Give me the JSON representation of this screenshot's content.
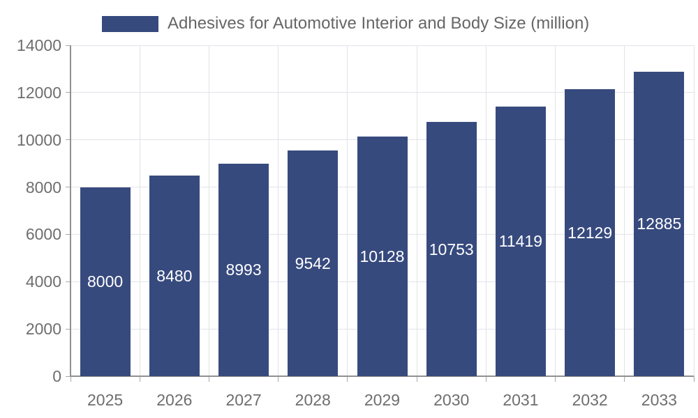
{
  "chart_data": {
    "type": "bar",
    "title": "Adhesives for Automotive Interior and Body Size (million)",
    "legend_label": "Adhesives for Automotive Interior and Body Size (million)",
    "legend_position": "top",
    "categories": [
      "2025",
      "2026",
      "2027",
      "2028",
      "2029",
      "2030",
      "2031",
      "2032",
      "2033"
    ],
    "series": [
      {
        "name": "Adhesives for Automotive Interior and Body Size (million)",
        "values": [
          8000,
          8480,
          8993,
          9542,
          10128,
          10753,
          11419,
          12129,
          12885
        ]
      }
    ],
    "value_labels": "inside",
    "xlabel": "",
    "ylabel": "",
    "ylim": [
      0,
      14000
    ],
    "yticks": [
      0,
      2000,
      4000,
      6000,
      8000,
      10000,
      12000,
      14000
    ],
    "grid": true,
    "colors": {
      "bar": "#374A7E",
      "value_label": "#FFFFFF",
      "axis_label": "#6E6E6E",
      "legend_text": "#666666",
      "grid_line": "#E1E3EA",
      "axis_line": "#909090",
      "tick": "#A8A8A8",
      "background": "#FFFFFF"
    }
  }
}
